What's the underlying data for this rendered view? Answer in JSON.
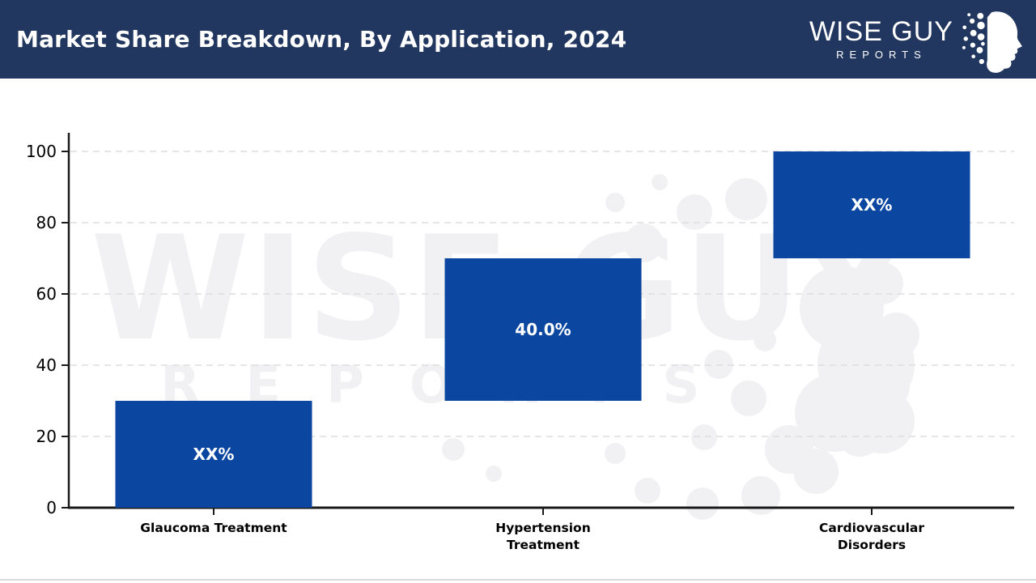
{
  "header": {
    "title": "Market Share Breakdown, By Application, 2024",
    "logo": {
      "name": "WISE GUY",
      "sub": "REPORTS"
    }
  },
  "watermark": {
    "line1": "WISE GUY",
    "line2": "REPORTS"
  },
  "chart_data": {
    "type": "bar",
    "subtype": "waterfall",
    "title": "Market Share Breakdown, By Application, 2024",
    "categories": [
      "Glaucoma Treatment",
      "Hypertension Treatment",
      "Cardiovascular Disorders"
    ],
    "category_lines": [
      [
        "Glaucoma Treatment"
      ],
      [
        "Hypertension",
        "Treatment"
      ],
      [
        "Cardiovascular",
        "Disorders"
      ]
    ],
    "segments": [
      {
        "category": "Glaucoma Treatment",
        "start": 0,
        "end": 30,
        "value": 30,
        "label": "XX%"
      },
      {
        "category": "Hypertension Treatment",
        "start": 30,
        "end": 70,
        "value": 40,
        "label": "40.0%"
      },
      {
        "category": "Cardiovascular Disorders",
        "start": 70,
        "end": 100,
        "value": 30,
        "label": "XX%"
      }
    ],
    "xlabel": "",
    "ylabel": "",
    "ylim": [
      0,
      100
    ],
    "yticks": [
      0,
      20,
      40,
      60,
      80,
      100
    ],
    "grid": true,
    "grid_style": "dashed",
    "legend": false,
    "label_color": "#ffffff"
  },
  "colors": {
    "header_bg": "#22375f",
    "header_text": "#ffffff",
    "bar": "#0b47a0",
    "grid": "#dedede",
    "axis": "#1a1a1a",
    "tick_text": "#000000",
    "watermark": "#f1f1f4"
  }
}
